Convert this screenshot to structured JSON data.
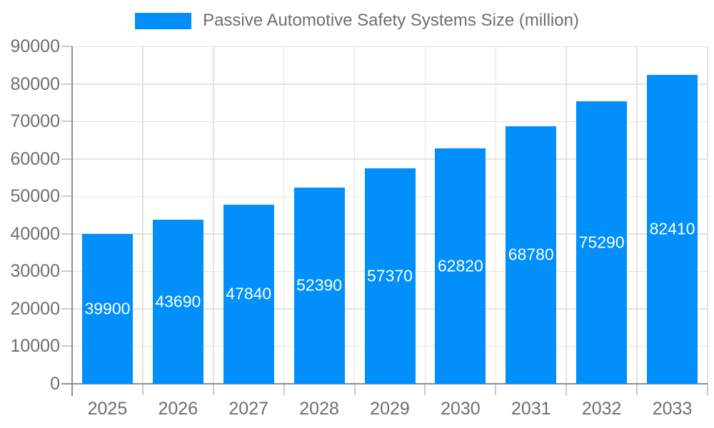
{
  "chart_data": {
    "type": "bar",
    "title": "Passive Automotive Safety Systems Size (million)",
    "categories": [
      "2025",
      "2026",
      "2027",
      "2028",
      "2029",
      "2030",
      "2031",
      "2032",
      "2033"
    ],
    "series": [
      {
        "name": "Passive Automotive Safety Systems Size (million)",
        "values": [
          39900,
          43690,
          47840,
          52390,
          57370,
          62820,
          68780,
          75290,
          82410
        ]
      }
    ],
    "bar_value_labels": [
      "39900",
      "43690",
      "47840",
      "52390",
      "57370",
      "62820",
      "68780",
      "75290",
      "82410"
    ],
    "xlabel": "",
    "ylabel": "",
    "ylim": [
      0,
      90000
    ],
    "ytick_step": 10000,
    "ytick_labels": [
      "0",
      "10000",
      "20000",
      "30000",
      "40000",
      "50000",
      "60000",
      "70000",
      "80000",
      "90000"
    ],
    "grid": true,
    "legend_position": "top"
  },
  "legend": {
    "label": "Passive Automotive Safety Systems Size (million)"
  },
  "colors": {
    "bar": "#008FFB",
    "bar_label_text": "#ffffff",
    "axis_text": "#6e6e6e",
    "legend_text": "#6e6e6e",
    "gridline": "#e2e2e2",
    "tick": "#c9c9c9",
    "axis_line": "#8f8f8f",
    "background": "#ffffff"
  }
}
